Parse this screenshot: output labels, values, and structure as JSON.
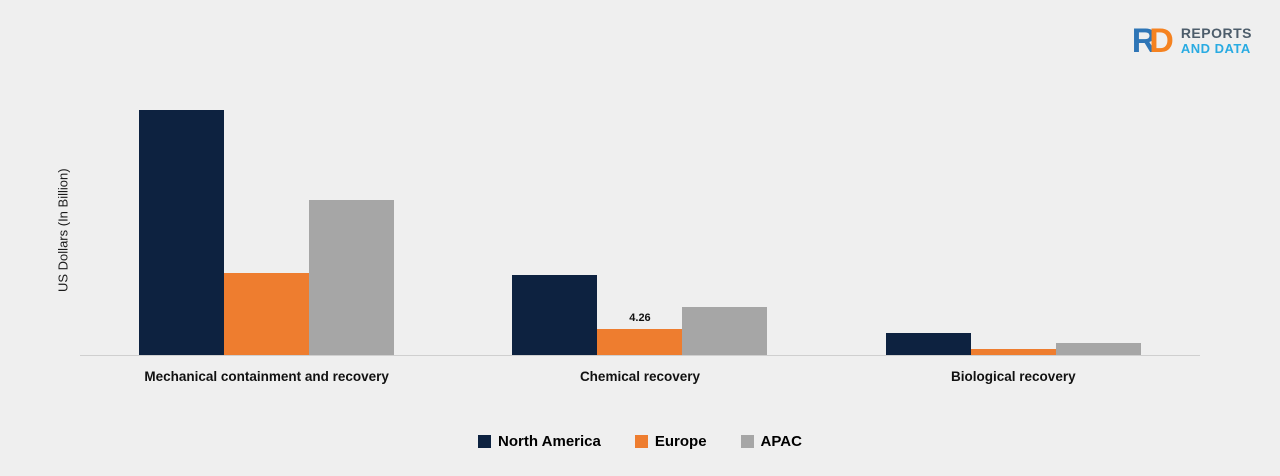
{
  "logo": {
    "mark_letter_1": "R",
    "mark_letter_2": "D",
    "line1": "REPORTS",
    "line2": "AND DATA",
    "colors": {
      "mark_r": "#2e75b6",
      "mark_d": "#f58220",
      "line1": "#4d5d6b",
      "line2": "#29abe2"
    }
  },
  "chart_data": {
    "type": "bar",
    "title": "",
    "xlabel": "",
    "ylabel": "US Dollars  (In Billion)",
    "categories": [
      "Mechanical containment and recovery",
      "Chemical recovery",
      "Biological recovery"
    ],
    "series": [
      {
        "name": "North America",
        "color": "#0d2240",
        "values": [
          40.2,
          13.1,
          3.6
        ]
      },
      {
        "name": "Europe",
        "color": "#ee7d2f",
        "values": [
          13.4,
          4.26,
          1.0
        ]
      },
      {
        "name": "APAC",
        "color": "#a6a6a6",
        "values": [
          25.4,
          7.9,
          2.0
        ]
      }
    ],
    "data_labels": [
      {
        "series_index": 1,
        "category_index": 1,
        "text": "4.26"
      }
    ],
    "ylim": [
      0,
      41
    ],
    "grid": false,
    "legend_position": "bottom",
    "background": "#efefef"
  }
}
